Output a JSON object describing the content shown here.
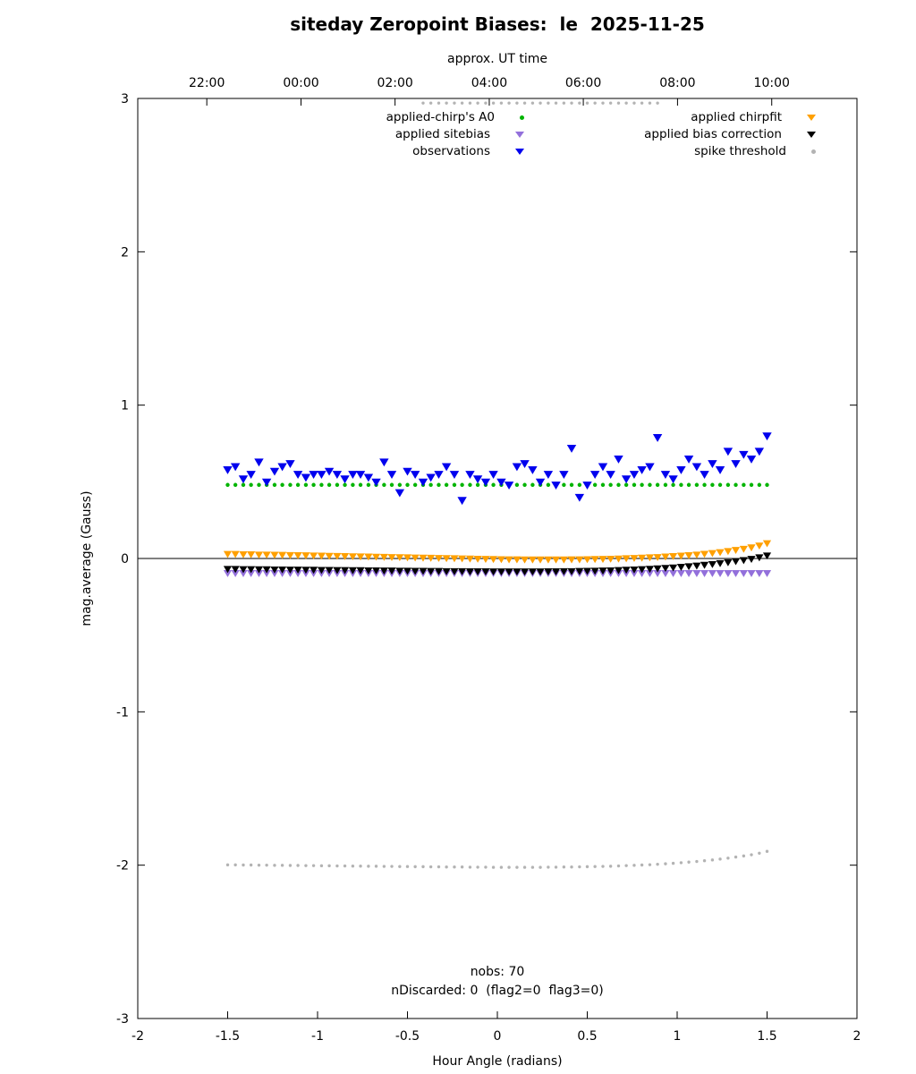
{
  "chart_data": {
    "type": "scatter",
    "title": "siteday Zeropoint Biases:  le  2025-11-25",
    "x2label": "approx. UT time",
    "xlabel": "Hour Angle (radians)",
    "ylabel": "mag.average (Gauss)",
    "xlim": [
      -2,
      2
    ],
    "ylim": [
      -3,
      3
    ],
    "grid": false,
    "legend_position": "top-center-two-columns",
    "x_ticks": [
      -2,
      -1.5,
      -1,
      -0.5,
      0,
      0.5,
      1,
      1.5,
      2
    ],
    "y_ticks": [
      -3,
      -2,
      -1,
      0,
      1,
      2,
      3
    ],
    "ut_ticks": [
      {
        "label": "22:00",
        "x": -1.616
      },
      {
        "label": "00:00",
        "x": -1.092
      },
      {
        "label": "02:00",
        "x": -0.569
      },
      {
        "label": "04:00",
        "x": -0.045
      },
      {
        "label": "06:00",
        "x": 0.478
      },
      {
        "label": "08:00",
        "x": 1.002
      },
      {
        "label": "10:00",
        "x": 1.526
      }
    ],
    "x": [
      -1.5,
      -1.457,
      -1.413,
      -1.37,
      -1.326,
      -1.283,
      -1.239,
      -1.196,
      -1.152,
      -1.109,
      -1.065,
      -1.022,
      -0.978,
      -0.935,
      -0.891,
      -0.848,
      -0.804,
      -0.761,
      -0.717,
      -0.674,
      -0.63,
      -0.587,
      -0.543,
      -0.5,
      -0.457,
      -0.413,
      -0.37,
      -0.326,
      -0.283,
      -0.239,
      -0.196,
      -0.152,
      -0.109,
      -0.065,
      -0.022,
      0.022,
      0.065,
      0.109,
      0.152,
      0.196,
      0.239,
      0.283,
      0.326,
      0.37,
      0.413,
      0.457,
      0.5,
      0.543,
      0.587,
      0.63,
      0.674,
      0.717,
      0.761,
      0.804,
      0.848,
      0.891,
      0.935,
      0.978,
      1.022,
      1.065,
      1.109,
      1.152,
      1.196,
      1.239,
      1.283,
      1.326,
      1.37,
      1.413,
      1.457,
      1.5
    ],
    "series": [
      {
        "name": "applied-chirp's A0",
        "marker": "dot",
        "color": "#00b400",
        "size": 2.2,
        "y_constant": 0.48
      },
      {
        "name": "applied sitebias",
        "marker": "triangle-down",
        "color": "#9370db",
        "size": 4.6,
        "y_constant": -0.095
      },
      {
        "name": "observations",
        "marker": "triangle-down",
        "color": "#0000ee",
        "size": 5.2,
        "values": [
          0.58,
          0.6,
          0.52,
          0.55,
          0.63,
          0.5,
          0.57,
          0.6,
          0.62,
          0.55,
          0.53,
          0.55,
          0.55,
          0.57,
          0.55,
          0.52,
          0.55,
          0.55,
          0.53,
          0.5,
          0.63,
          0.55,
          0.43,
          0.57,
          0.55,
          0.5,
          0.53,
          0.55,
          0.6,
          0.55,
          0.38,
          0.55,
          0.52,
          0.5,
          0.55,
          0.5,
          0.48,
          0.6,
          0.62,
          0.58,
          0.5,
          0.55,
          0.48,
          0.55,
          0.72,
          0.4,
          0.48,
          0.55,
          0.6,
          0.55,
          0.65,
          0.52,
          0.55,
          0.58,
          0.6,
          0.79,
          0.55,
          0.52,
          0.58,
          0.65,
          0.6,
          0.55,
          0.62,
          0.58,
          0.7,
          0.62,
          0.68,
          0.65,
          0.7,
          0.8
        ]
      },
      {
        "name": "applied chirpfit",
        "marker": "triangle-down",
        "color": "#ffa000",
        "size": 4.6,
        "values": [
          0.03,
          0.03,
          0.028,
          0.028,
          0.026,
          0.026,
          0.025,
          0.024,
          0.023,
          0.022,
          0.021,
          0.02,
          0.019,
          0.018,
          0.017,
          0.016,
          0.015,
          0.014,
          0.013,
          0.012,
          0.011,
          0.01,
          0.009,
          0.008,
          0.007,
          0.006,
          0.005,
          0.004,
          0.003,
          0.002,
          0.001,
          0.0,
          -0.001,
          -0.002,
          -0.003,
          -0.004,
          -0.005,
          -0.005,
          -0.006,
          -0.006,
          -0.006,
          -0.006,
          -0.006,
          -0.006,
          -0.005,
          -0.005,
          -0.004,
          -0.003,
          -0.002,
          -0.001,
          0.0,
          0.002,
          0.004,
          0.006,
          0.008,
          0.01,
          0.013,
          0.016,
          0.019,
          0.022,
          0.026,
          0.031,
          0.036,
          0.042,
          0.049,
          0.056,
          0.064,
          0.073,
          0.085,
          0.1
        ]
      },
      {
        "name": "applied bias correction",
        "marker": "triangle-down",
        "color": "#000000",
        "size": 4.6,
        "values": [
          -0.068,
          -0.068,
          -0.069,
          -0.069,
          -0.07,
          -0.07,
          -0.071,
          -0.071,
          -0.072,
          -0.072,
          -0.073,
          -0.073,
          -0.074,
          -0.074,
          -0.075,
          -0.075,
          -0.076,
          -0.076,
          -0.077,
          -0.077,
          -0.078,
          -0.078,
          -0.079,
          -0.079,
          -0.08,
          -0.08,
          -0.081,
          -0.081,
          -0.082,
          -0.082,
          -0.082,
          -0.083,
          -0.083,
          -0.083,
          -0.084,
          -0.084,
          -0.084,
          -0.084,
          -0.084,
          -0.084,
          -0.084,
          -0.083,
          -0.083,
          -0.082,
          -0.082,
          -0.081,
          -0.08,
          -0.079,
          -0.078,
          -0.077,
          -0.075,
          -0.073,
          -0.071,
          -0.069,
          -0.067,
          -0.064,
          -0.061,
          -0.058,
          -0.054,
          -0.05,
          -0.046,
          -0.041,
          -0.036,
          -0.03,
          -0.024,
          -0.017,
          -0.01,
          -0.002,
          0.008,
          0.02
        ]
      },
      {
        "name": "spike threshold",
        "marker": "dot",
        "color": "#b3b3b3",
        "size": 1.7,
        "values": [
          -1.998,
          -1.998,
          -1.999,
          -1.999,
          -2.0,
          -2.0,
          -2.001,
          -2.001,
          -2.002,
          -2.002,
          -2.003,
          -2.003,
          -2.004,
          -2.004,
          -2.005,
          -2.005,
          -2.006,
          -2.006,
          -2.007,
          -2.007,
          -2.008,
          -2.008,
          -2.009,
          -2.009,
          -2.01,
          -2.01,
          -2.011,
          -2.011,
          -2.012,
          -2.012,
          -2.012,
          -2.013,
          -2.013,
          -2.013,
          -2.014,
          -2.014,
          -2.014,
          -2.014,
          -2.014,
          -2.014,
          -2.014,
          -2.013,
          -2.013,
          -2.012,
          -2.012,
          -2.011,
          -2.01,
          -2.009,
          -2.008,
          -2.007,
          -2.005,
          -2.003,
          -2.001,
          -1.999,
          -1.997,
          -1.994,
          -1.991,
          -1.988,
          -1.984,
          -1.98,
          -1.976,
          -1.971,
          -1.966,
          -1.96,
          -1.954,
          -1.947,
          -1.94,
          -1.932,
          -1.922,
          -1.91
        ],
        "upper": {
          "x_min": -0.45,
          "x_max": 0.92,
          "y": 2.97
        }
      }
    ],
    "annotations": [
      "nobs: 70",
      "nDiscarded: 0  (flag2=0  flag3=0)"
    ]
  },
  "footer": {
    "nobs": "nobs: 70",
    "ndiscarded": "nDiscarded: 0  (flag2=0  flag3=0)"
  }
}
